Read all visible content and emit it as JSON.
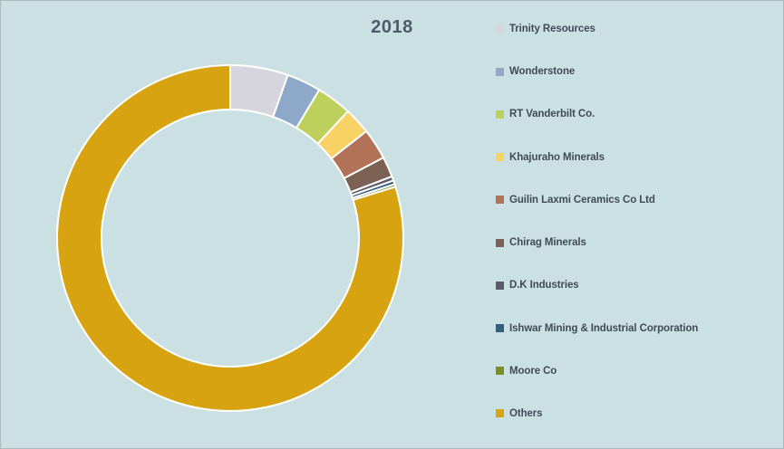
{
  "page": {
    "background_color": "#cbe0e2",
    "border_color": "#a9babd"
  },
  "chart_data": {
    "type": "pie",
    "subtype": "donut",
    "title": "2018",
    "legend_position": "right",
    "direction": "clockwise",
    "start_angle_deg": 0,
    "hole_ratio": 0.74,
    "categories": [
      "Trinity Resources",
      "Wonderstone",
      "RT Vanderbilt Co.",
      "Khajuraho Minerals",
      "Guilin Laxmi Ceramics Co Ltd",
      "Chirag Minerals",
      "D.K Industries",
      "Ishwar Mining & Industrial  Corporation",
      "Moore Co",
      "Others"
    ],
    "values_pct": [
      5.4,
      3.2,
      3.3,
      2.5,
      2.9,
      1.9,
      0.4,
      0.35,
      0.25,
      79.8
    ],
    "colors": [
      "#d6d5de",
      "#8da8c8",
      "#bdd05c",
      "#f8d265",
      "#b17257",
      "#7d6054",
      "#5c5a6a",
      "#315f7d",
      "#7e8e26",
      "#d7a311"
    ],
    "segment_border_color": "#ffffff",
    "title_color": "#4d5a6a",
    "legend_text_color": "#414b57"
  }
}
